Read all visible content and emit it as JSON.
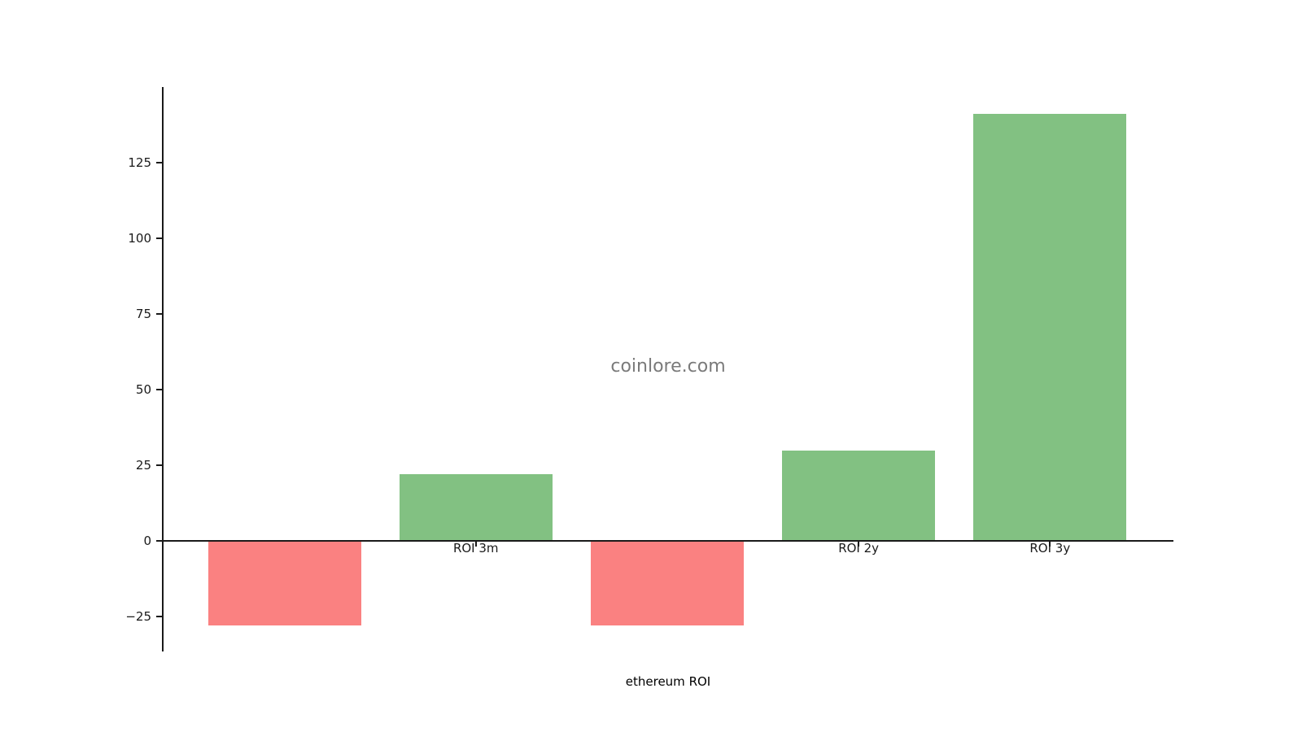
{
  "watermark": "coinlore.com",
  "chart_data": {
    "type": "bar",
    "title": "",
    "xlabel": "ethereum ROI",
    "ylabel": "",
    "categories": [
      "",
      "ROI 3m",
      "",
      "ROI 2y",
      "ROI 3y"
    ],
    "values": [
      -28,
      22,
      -28,
      30,
      141
    ],
    "bar_colors": [
      "#fa8181",
      "#82c182",
      "#fa8181",
      "#82c182",
      "#82c182"
    ],
    "yticks": [
      -25,
      0,
      25,
      50,
      75,
      100,
      125
    ],
    "ylim": [
      -36.5,
      150
    ],
    "xlim": [
      -0.636,
      4.645
    ],
    "bar_width_fraction": 0.8,
    "grid": false,
    "legend": false,
    "axis_note": "left spine and zero baseline only; x tick labels sit just below the zero line",
    "colors": {
      "positive_bar": "#82c182",
      "negative_bar": "#fa8181",
      "axis": "#1a1a1a",
      "watermark_text": "#7a7a7a",
      "background": "#ffffff"
    }
  }
}
